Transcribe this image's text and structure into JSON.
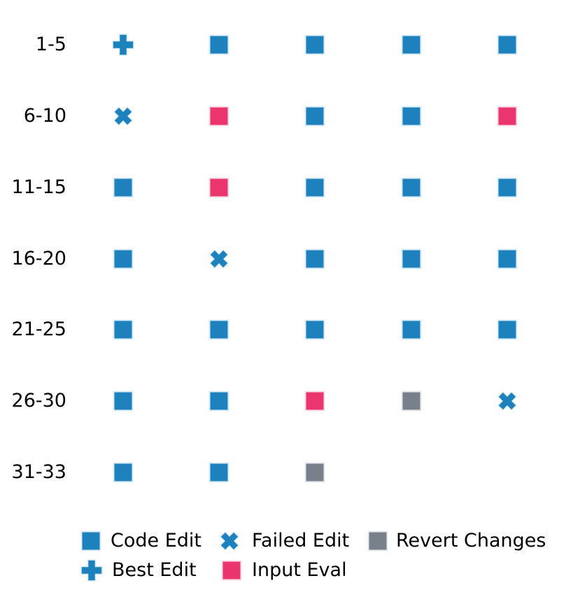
{
  "chart_data": {
    "type": "scatter",
    "grid": false,
    "legend_position": "lower center",
    "columns_per_row": 5,
    "colors": {
      "blue": "#1c81bd",
      "pink": "#ea356e",
      "gray": "#78808b"
    },
    "marker_types": {
      "code_edit": {
        "label": "Code Edit",
        "shape": "square",
        "color": "#1c81bd"
      },
      "failed_edit": {
        "label": "Failed Edit",
        "shape": "x",
        "color": "#1c81bd"
      },
      "revert_changes": {
        "label": "Revert Changes",
        "shape": "square",
        "color": "#78808b"
      },
      "best_edit": {
        "label": "Best Edit",
        "shape": "plus",
        "color": "#1c81bd"
      },
      "input_eval": {
        "label": "Input Eval",
        "shape": "square",
        "color": "#ea356e"
      }
    },
    "rows": [
      {
        "label": "1-5",
        "markers": [
          "best_edit",
          "code_edit",
          "code_edit",
          "code_edit",
          "code_edit"
        ]
      },
      {
        "label": "6-10",
        "markers": [
          "failed_edit",
          "input_eval",
          "code_edit",
          "code_edit",
          "input_eval"
        ]
      },
      {
        "label": "11-15",
        "markers": [
          "code_edit",
          "input_eval",
          "code_edit",
          "code_edit",
          "code_edit"
        ]
      },
      {
        "label": "16-20",
        "markers": [
          "code_edit",
          "failed_edit",
          "code_edit",
          "code_edit",
          "code_edit"
        ]
      },
      {
        "label": "21-25",
        "markers": [
          "code_edit",
          "code_edit",
          "code_edit",
          "code_edit",
          "code_edit"
        ]
      },
      {
        "label": "26-30",
        "markers": [
          "code_edit",
          "code_edit",
          "input_eval",
          "revert_changes",
          "failed_edit"
        ]
      },
      {
        "label": "31-33",
        "markers": [
          "code_edit",
          "code_edit",
          "revert_changes",
          "none",
          "none"
        ]
      }
    ],
    "legend": {
      "rows": [
        [
          "code_edit",
          "failed_edit",
          "revert_changes"
        ],
        [
          "best_edit",
          "input_eval"
        ]
      ]
    }
  }
}
